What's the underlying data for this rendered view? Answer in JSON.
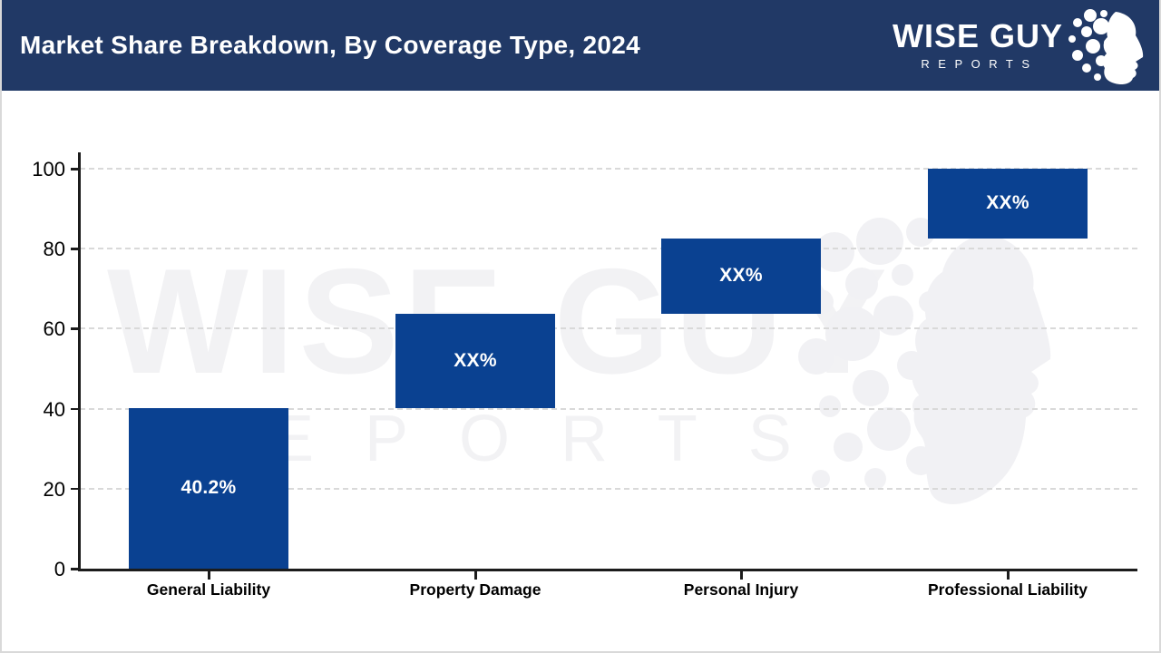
{
  "header": {
    "title": "Market Share Breakdown, By Coverage Type, 2024",
    "logo": {
      "line1": "WISE GUY",
      "line2": "REPORTS"
    }
  },
  "watermark": {
    "line1": "WISE GUY",
    "line2": "REPORTS"
  },
  "chart_data": {
    "type": "bar",
    "subtype": "waterfall",
    "title": "Market Share Breakdown, By Coverage Type, 2024",
    "categories": [
      "General Liability",
      "Property Damage",
      "Personal Injury",
      "Professional Liability"
    ],
    "segments": [
      {
        "category": "General Liability",
        "start": 0,
        "end": 40.2,
        "label": "40.2%"
      },
      {
        "category": "Property Damage",
        "start": 40.2,
        "end": 63.7,
        "label": "XX%"
      },
      {
        "category": "Personal Injury",
        "start": 63.7,
        "end": 82.6,
        "label": "XX%"
      },
      {
        "category": "Professional Liability",
        "start": 82.6,
        "end": 100,
        "label": "XX%"
      }
    ],
    "yticks": [
      0,
      20,
      40,
      60,
      80,
      100
    ],
    "ylim": [
      0,
      104
    ],
    "xlabel": "",
    "ylabel": "",
    "grid": "horizontal-dashed",
    "legend": "none",
    "colors": {
      "bar": "#0a4191",
      "header_bg": "#213966",
      "gridline": "#d9d9d9",
      "axis": "#1c1c1c",
      "watermark": "#f2f2f4",
      "value_label": "#ffffff"
    }
  }
}
